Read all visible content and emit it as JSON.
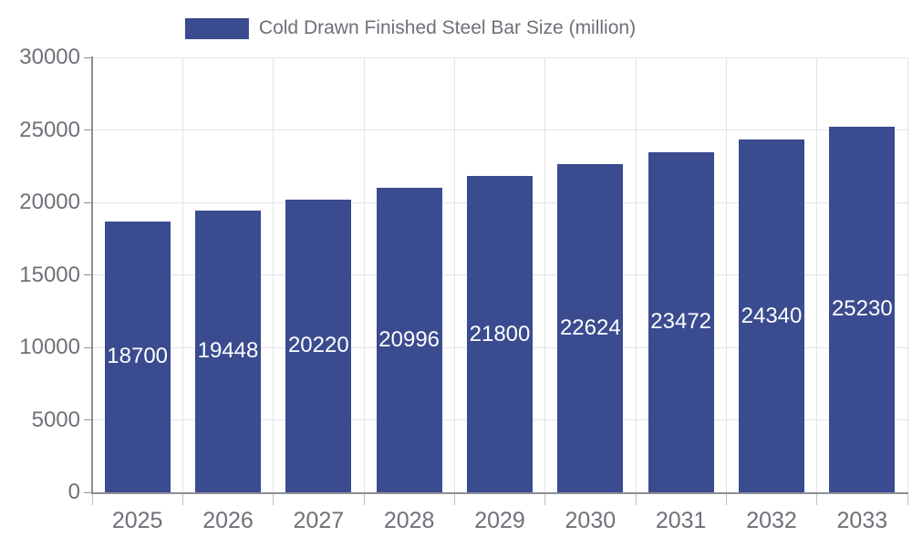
{
  "chart_data": {
    "type": "bar",
    "title": "Cold Drawn Finished Steel Bar Size (million)",
    "series_name": "Cold Drawn Finished Steel Bar Size (million)",
    "categories": [
      "2025",
      "2026",
      "2027",
      "2028",
      "2029",
      "2030",
      "2031",
      "2032",
      "2033"
    ],
    "values": [
      18700,
      19448,
      20220,
      20996,
      21800,
      22624,
      23472,
      24340,
      25230
    ],
    "xlabel": "",
    "ylabel": "",
    "ylim": [
      0,
      30000
    ],
    "y_ticks": [
      0,
      5000,
      10000,
      15000,
      20000,
      25000,
      30000
    ],
    "grid": true,
    "legend_position": "top-center",
    "value_labels": "inside-center",
    "colors": {
      "bar": "#3A4B8F",
      "grid": "#E3E3E9",
      "axis_line": "#8E8E96",
      "axis_label": "#707079",
      "title": "#6F6F78",
      "value_label": "#FFFFFF",
      "background": "#FFFFFF"
    }
  }
}
